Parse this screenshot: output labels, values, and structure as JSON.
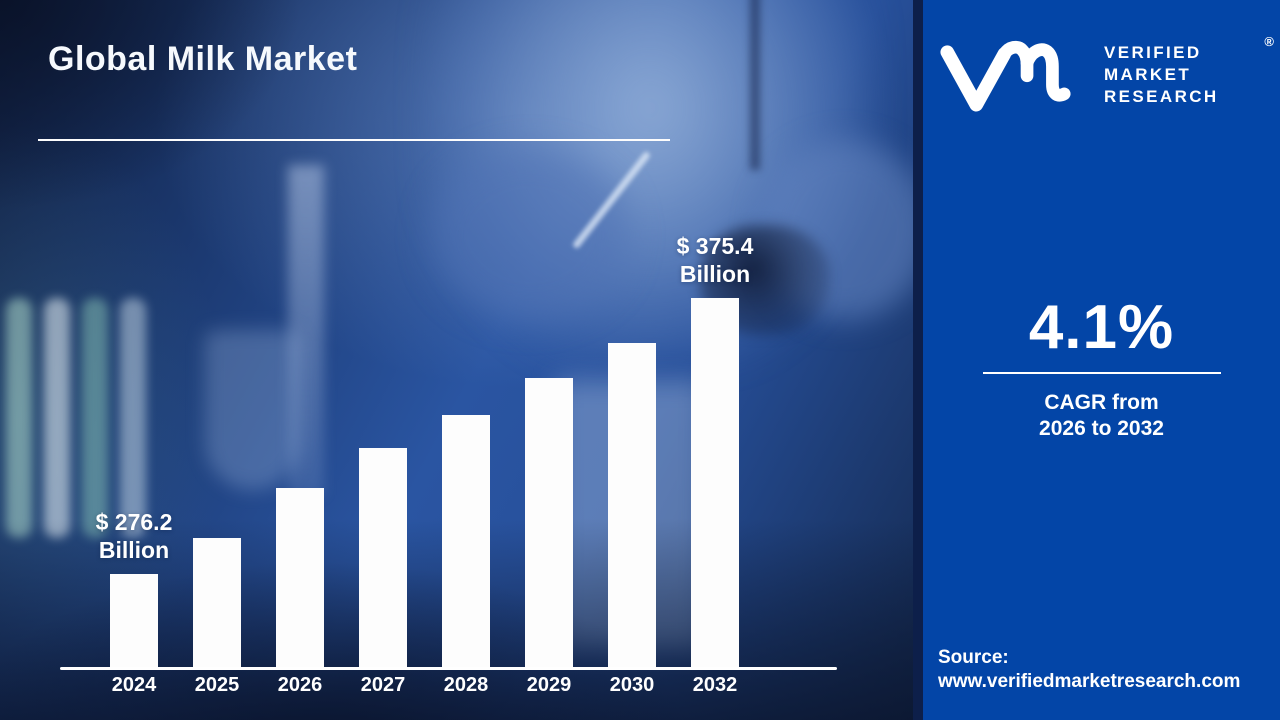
{
  "title": "Global Milk Market",
  "logo": {
    "name": "Verified Market Research",
    "monogram": "vm",
    "lines": [
      "VERIFIED",
      "MARKET",
      "RESEARCH"
    ],
    "registered": "®"
  },
  "stats": {
    "cagr_value": "4.1%",
    "cagr_line1": "CAGR from",
    "cagr_line2": "2026 to 2032"
  },
  "source": {
    "label": "Source:",
    "url": "www.verifiedmarketresearch.com"
  },
  "chart_data": {
    "type": "bar",
    "title": "Global Milk Market",
    "categories": [
      "2024",
      "2025",
      "2026",
      "2027",
      "2028",
      "2029",
      "2030",
      "2032"
    ],
    "values": [
      276.2,
      289.1,
      307.1,
      321.5,
      333.3,
      346.6,
      359.2,
      375.4
    ],
    "unit": "USD Billion",
    "value_labels": [
      {
        "category": "2024",
        "line1": "$ 276.2",
        "line2": "Billion"
      },
      {
        "category": "2032",
        "line1": "$ 375.4",
        "line2": "Billion"
      }
    ],
    "xlabel": "",
    "ylabel": "",
    "legend": false,
    "gridlines": false,
    "bar_color": "#FFFFFF",
    "note": "Only 2024 and 2032 bars carry data labels; intermediate values estimated from bar heights; 2031 omitted on x-axis"
  },
  "colors": {
    "right_panel_blue": "#0345A7",
    "divider_navy": "#0D1F4A",
    "bar_white": "#FFFFFF",
    "text_white": "#FFFFFF"
  }
}
